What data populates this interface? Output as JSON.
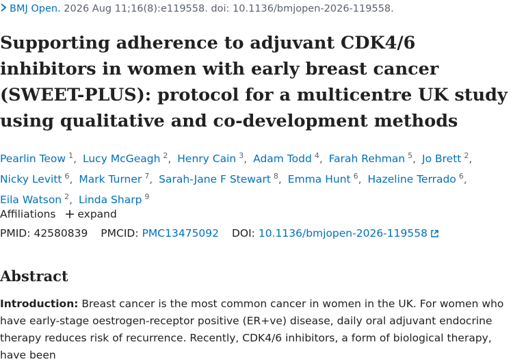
{
  "citation": {
    "journal": "BMJ Open.",
    "details": "2026 Aug 11;16(8):e119558. doi: 10.1136/bmjopen-2026-119558."
  },
  "title": "Supporting adherence to adjuvant CDK4/6 inhibitors in women with early breast cancer (SWEET-PLUS): protocol for a multicentre UK study using qualitative and co-development methods",
  "authors": [
    {
      "name": "Pearlin Teow",
      "sup": "1"
    },
    {
      "name": "Lucy McGeagh",
      "sup": "2"
    },
    {
      "name": "Henry Cain",
      "sup": "3"
    },
    {
      "name": "Adam Todd",
      "sup": "4"
    },
    {
      "name": "Farah Rehman",
      "sup": "5"
    },
    {
      "name": "Jo Brett",
      "sup": "2"
    },
    {
      "name": "Nicky Levitt",
      "sup": "6"
    },
    {
      "name": "Mark Turner",
      "sup": "7"
    },
    {
      "name": "Sarah-Jane F Stewart",
      "sup": "8"
    },
    {
      "name": "Emma Hunt",
      "sup": "6"
    },
    {
      "name": "Hazeline Terrado",
      "sup": "6"
    },
    {
      "name": "Eila Watson",
      "sup": "2"
    },
    {
      "name": "Linda Sharp",
      "sup": "9"
    }
  ],
  "affiliations": {
    "label": "Affiliations",
    "action": "expand"
  },
  "identifiers": {
    "pmid_label": "PMID:",
    "pmid": "42580839",
    "pmcid_label": "PMCID:",
    "pmcid": "PMC13475092",
    "doi_label": "DOI:",
    "doi": "10.1136/bmjopen-2026-119558"
  },
  "abstract": {
    "heading": "Abstract",
    "paragraphs": [
      {
        "label": "Introduction:",
        "text": "Breast cancer is the most common cancer in women in the UK. For women who have early-stage oestrogen-receptor positive (ER+ve) disease, daily oral adjuvant endocrine therapy reduces risk of recurrence. Recently, CDK4/6 inhibitors, a form of biological therapy, have been"
      }
    ]
  }
}
